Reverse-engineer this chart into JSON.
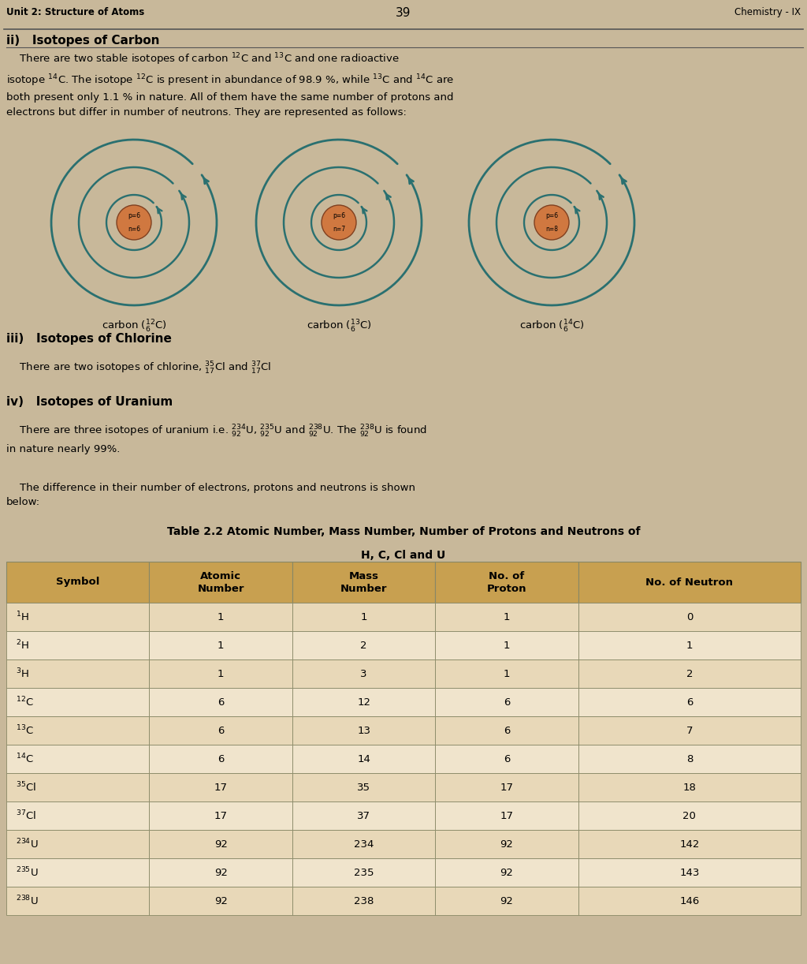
{
  "page_header_left": "Unit 2: Structure of Atoms",
  "page_number": "39",
  "page_header_right": "Chemistry - IX",
  "bg_color": "#c8b89a",
  "content_bg": "#d4c4a8",
  "section_ii_title": "ii)   Isotopes of Carbon",
  "carbon_nucleus": [
    "p=6\nn=6",
    "p=6\nn=7",
    "p=6\nn=8"
  ],
  "carbon_labels": [
    "carbon ($^{12}_6$C)",
    "carbon ($^{13}_6$C)",
    "carbon ($^{14}_6$C)"
  ],
  "section_iii_title": "iii)   Isotopes of Chlorine",
  "section_iv_title": "iv)   Isotopes of Uranium",
  "table_title_1": "Table 2.2 Atomic Number, Mass Number, Number of Protons and Neutrons of",
  "table_title_2": "H, C, Cl and U",
  "table_header_color": "#c8a050",
  "table_alt1": "#e8d8b8",
  "table_alt2": "#f0e4cc",
  "table_header": [
    "Symbol",
    "Atomic\nNumber",
    "Mass\nNumber",
    "No. of\nProton",
    "No. of Neutron"
  ],
  "table_rows": [
    [
      "$^{1}$H",
      "1",
      "1",
      "1",
      "0"
    ],
    [
      "$^{2}$H",
      "1",
      "2",
      "1",
      "1"
    ],
    [
      "$^{3}$H",
      "1",
      "3",
      "1",
      "2"
    ],
    [
      "$^{12}$C",
      "6",
      "12",
      "6",
      "6"
    ],
    [
      "$^{13}$C",
      "6",
      "13",
      "6",
      "7"
    ],
    [
      "$^{14}$C",
      "6",
      "14",
      "6",
      "8"
    ],
    [
      "$^{35}$Cl",
      "17",
      "35",
      "17",
      "18"
    ],
    [
      "$^{37}$Cl",
      "17",
      "37",
      "17",
      "20"
    ],
    [
      "$^{234}$U",
      "92",
      "234",
      "92",
      "142"
    ],
    [
      "$^{235}$U",
      "92",
      "235",
      "92",
      "143"
    ],
    [
      "$^{238}$U",
      "92",
      "238",
      "92",
      "146"
    ]
  ],
  "atom_circle_color": "#2a7070",
  "atom_nucleus_color": "#d07840",
  "atom_nucleus_border": "#804020"
}
